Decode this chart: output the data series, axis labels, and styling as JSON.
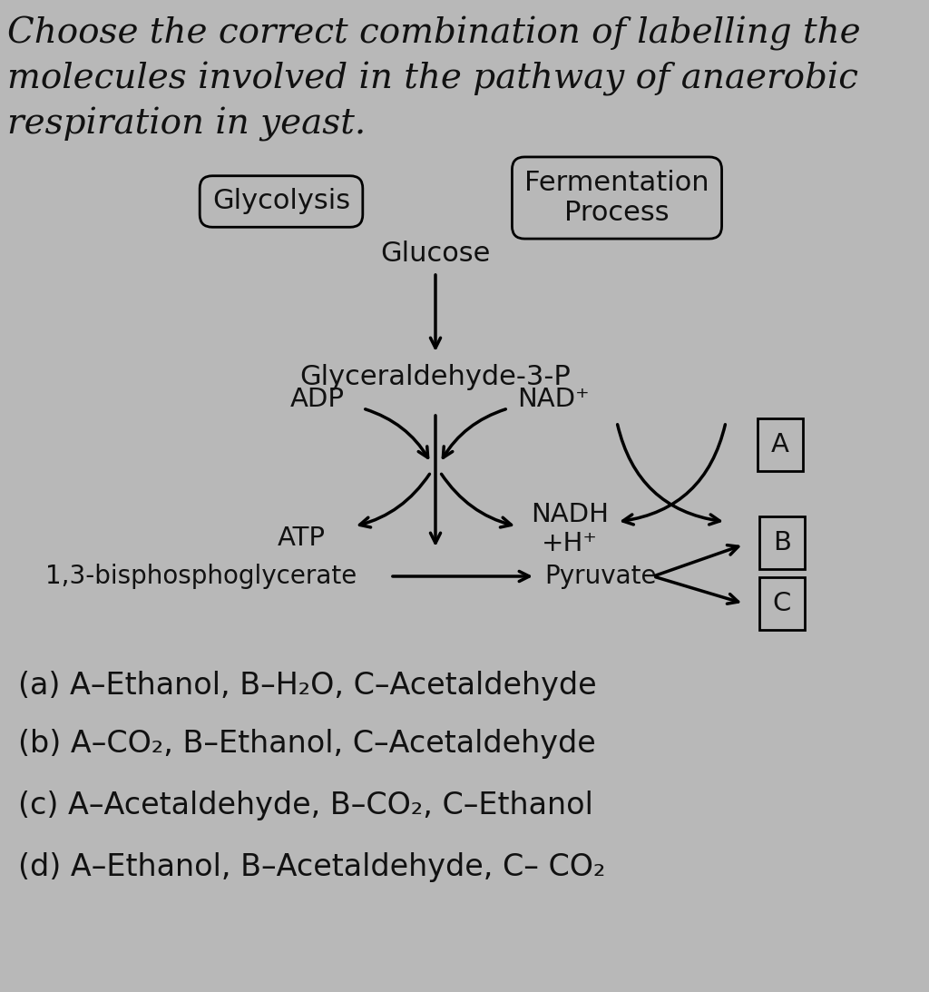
{
  "bg_color": "#b8b8b8",
  "text_color": "#111111",
  "title_line1": "Choose the correct combination of labelling the",
  "title_line2": "molecules involved in the pathway of anaerobic",
  "title_line3": "respiration in yeast.",
  "glycolysis_label": "Glycolysis",
  "fermentation_label": "Fermentation\nProcess",
  "glucose_label": "Glucose",
  "glyceraldehyde_label": "Glyceraldehyde-3-P",
  "adp_label": "ADP",
  "atp_label": "ATP",
  "nad_label": "NAD⁺",
  "nadh_label": "NADH\n+H⁺",
  "bisphospho_label": "1,3-bisphosphoglycerate",
  "pyruvate_label": "Pyruvate",
  "A_label": "A",
  "B_label": "B",
  "C_label": "C",
  "option_a": "(a) A–Ethanol, B–H₂O, C–Acetaldehyde",
  "option_b": "(b) A–CO₂, B–Ethanol, C–Acetaldehyde",
  "option_c": "(c) A–Acetaldehyde, B–CO₂, C–Ethanol",
  "option_d": "(d) A–Ethanol, B–Acetaldehyde, C– CO₂"
}
